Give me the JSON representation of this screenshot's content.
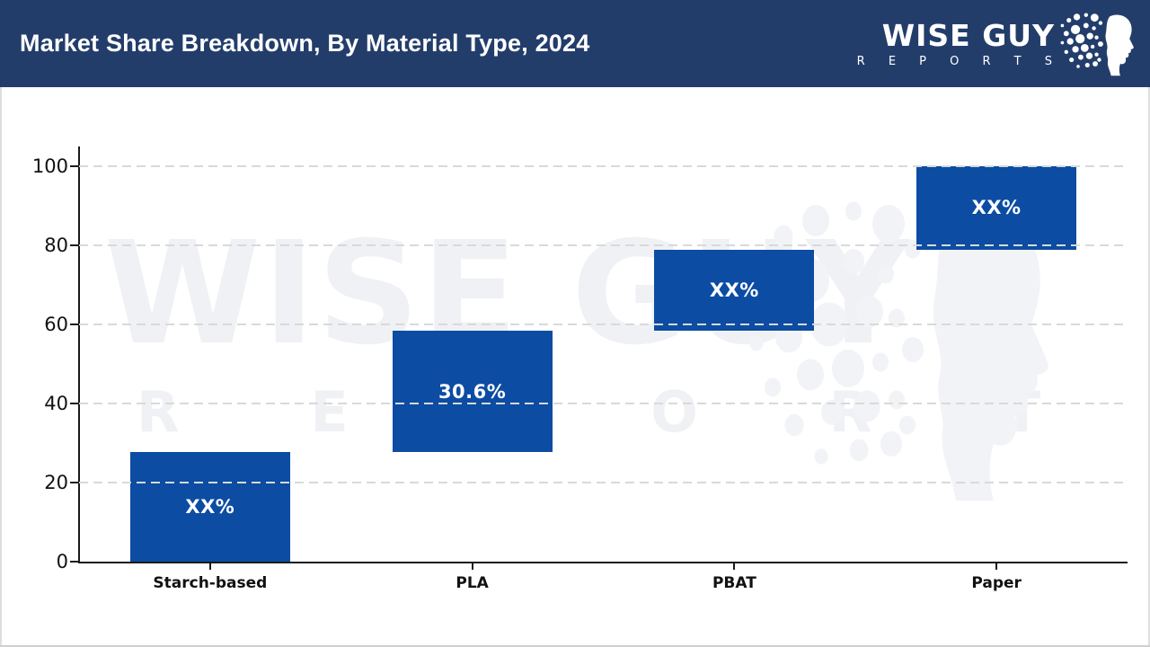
{
  "header": {
    "title": "Market Share Breakdown, By Material Type, 2024",
    "logo": {
      "primary": "WISE GUY",
      "secondary": "R E P O R T S"
    },
    "colors": {
      "background": "#233d6b",
      "text": "#ffffff"
    }
  },
  "watermark": {
    "primary": "WISE GUY",
    "secondary": "R E P O R T S"
  },
  "chart_data": {
    "type": "bar",
    "subtype": "waterfall",
    "title": "Market Share Breakdown, By Material Type, 2024",
    "xlabel": "",
    "ylabel": "",
    "categories": [
      "Starch-based",
      "PLA",
      "PBAT",
      "Paper"
    ],
    "segments": [
      {
        "category": "Starch-based",
        "start": 0,
        "end": 27.7,
        "label": "XX%"
      },
      {
        "category": "PLA",
        "start": 27.7,
        "end": 58.3,
        "label": "30.6%"
      },
      {
        "category": "PBAT",
        "start": 58.3,
        "end": 78.9,
        "label": "XX%"
      },
      {
        "category": "Paper",
        "start": 78.9,
        "end": 100,
        "label": "XX%"
      }
    ],
    "y_ticks": [
      0,
      20,
      40,
      60,
      80,
      100
    ],
    "ylim": [
      0,
      105
    ],
    "grid": {
      "horizontal": true,
      "style": "dashed",
      "color": "#d9d9d9"
    },
    "legend": "none",
    "bar_color": "#0c4ca3",
    "bar_label_color": "#ffffff",
    "axis_color": "#1a1a1a"
  }
}
